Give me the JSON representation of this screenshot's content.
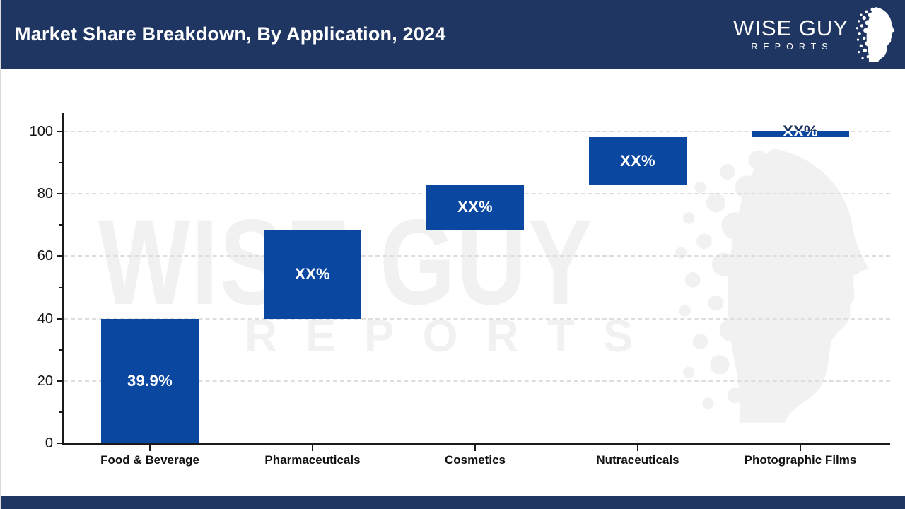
{
  "header": {
    "title": "Market Share Breakdown, By Application, 2024",
    "logo": {
      "line1": "WISE GUY",
      "line2": "REPORTS"
    }
  },
  "watermark": {
    "line1": "WISE GUY",
    "line2": "REPORTS"
  },
  "chart_data": {
    "type": "bar",
    "subtype": "floating-waterfall",
    "title": "Market Share Breakdown, By Application, 2024",
    "categories": [
      "Food & Beverage",
      "Pharmaceuticals",
      "Cosmetics",
      "Nutraceuticals",
      "Photographic Films"
    ],
    "bars": [
      {
        "category": "Food & Beverage",
        "start": 0,
        "end": 39.9,
        "label": "39.9%"
      },
      {
        "category": "Pharmaceuticals",
        "start": 39.9,
        "end": 68.4,
        "label": "XX%"
      },
      {
        "category": "Cosmetics",
        "start": 68.4,
        "end": 82.9,
        "label": "XX%"
      },
      {
        "category": "Nutraceuticals",
        "start": 82.9,
        "end": 98.1,
        "label": "XX%"
      },
      {
        "category": "Photographic Films",
        "start": 98.1,
        "end": 100,
        "label": "XX%"
      }
    ],
    "yticks": [
      0,
      20,
      40,
      60,
      80,
      100
    ],
    "minor_yticks": [
      10,
      30,
      50,
      70,
      90
    ],
    "ylim": [
      0,
      106
    ],
    "xlabel": "",
    "ylabel": "",
    "grid": "dashed-horizontal",
    "legend": "none",
    "bar_color": "#0a47a0",
    "label_color_inside": "#ffffff",
    "label_color_outside": "#1f3562",
    "header_color": "#1f3562",
    "gridline_color": "#dedede",
    "watermark_color": "#f1f1f1"
  }
}
